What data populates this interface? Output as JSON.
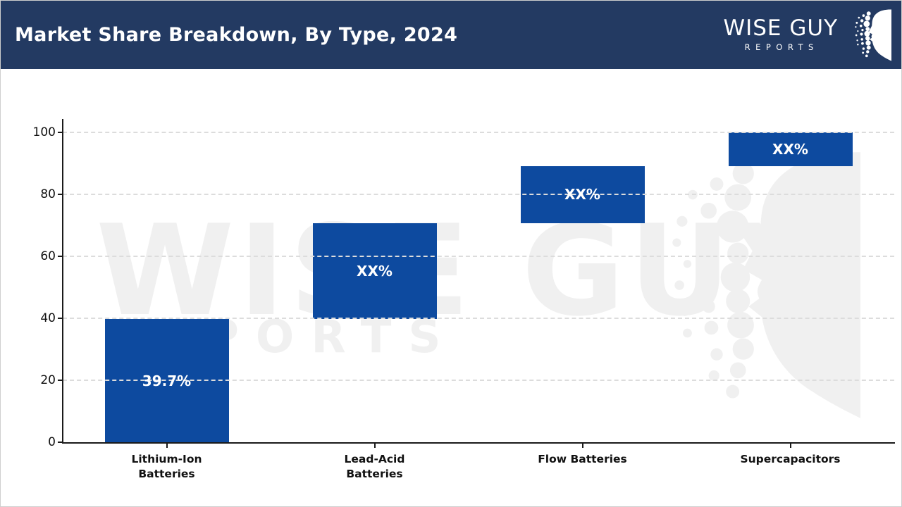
{
  "page": {
    "background": "#ffffff",
    "border_color": "#cfcfcf"
  },
  "header": {
    "background": "#233a62",
    "title": "Market Share Breakdown, By Type, 2024",
    "title_color": "#ffffff",
    "logo": {
      "line1": "WISE GUY",
      "line2": "REPORTS",
      "face_icon": "dotted-head-profile"
    }
  },
  "watermark": {
    "line1": "WISE GUY",
    "line2": "REPORTS",
    "color": "#f0f0f0"
  },
  "chart_data": {
    "type": "bar",
    "subtype": "waterfall",
    "title": "Market Share Breakdown, By Type, 2024",
    "categories": [
      "Lithium-Ion\nBatteries",
      "Lead-Acid\nBatteries",
      "Flow Batteries",
      "Supercapacitors"
    ],
    "segments": [
      {
        "category": "Lithium-Ion Batteries",
        "from": 0,
        "to": 39.7,
        "label": "39.7%"
      },
      {
        "category": "Lead-Acid Batteries",
        "from": 39.7,
        "to": 70.6,
        "label": "XX%"
      },
      {
        "category": "Flow Batteries",
        "from": 70.6,
        "to": 89.2,
        "label": "XX%"
      },
      {
        "category": "Supercapacitors",
        "from": 89.2,
        "to": 100,
        "label": "XX%"
      }
    ],
    "xlabel": "",
    "ylabel": "",
    "ylim": [
      0,
      100
    ],
    "yticks": [
      0,
      20,
      40,
      60,
      80,
      100
    ],
    "grid": "horizontal-dashed",
    "legend": "none",
    "bar_color": "#0d4a9f",
    "bar_label_color": "#ffffff",
    "axis_color": "#1a1a1a",
    "grid_color": "#dcdcdc",
    "tick_label_color": "#111111"
  }
}
